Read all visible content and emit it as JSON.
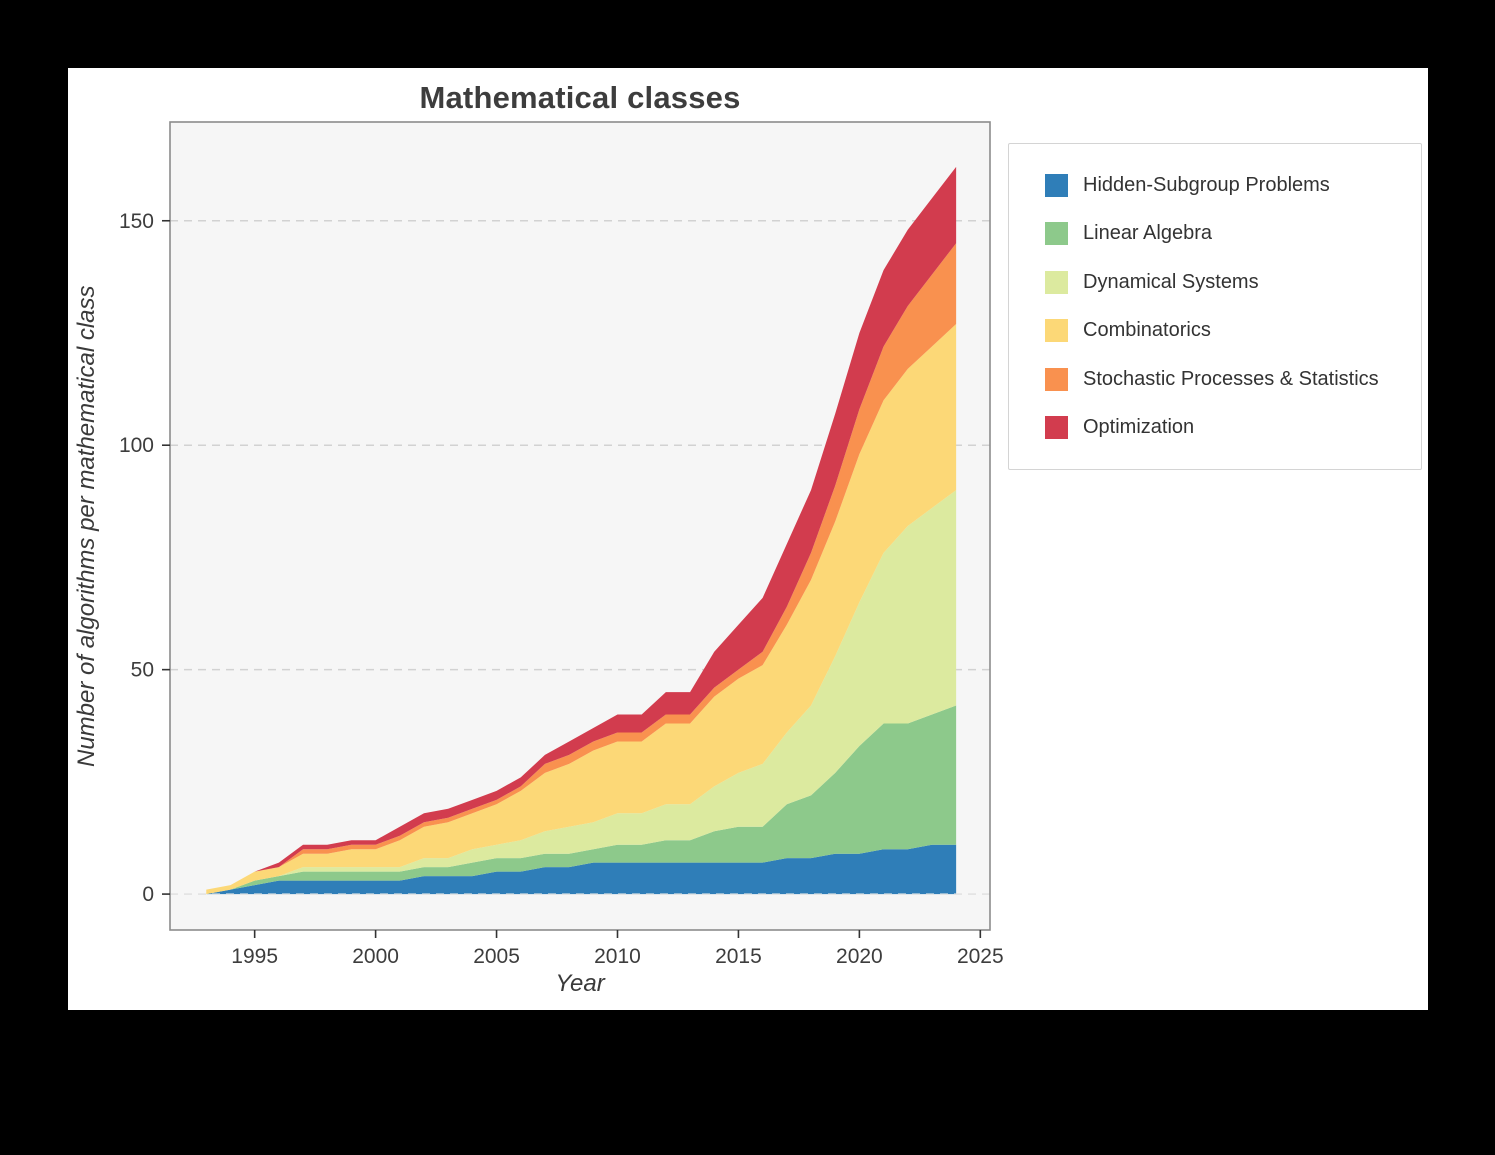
{
  "chart_data": {
    "type": "area",
    "stacked": true,
    "title": "Mathematical classes",
    "xlabel": "Year",
    "ylabel": "Number of algorithms per mathematical class",
    "xlim": [
      1991.5,
      2025.4
    ],
    "ylim": [
      -8,
      172
    ],
    "xticks": [
      1995,
      2000,
      2005,
      2010,
      2015,
      2020,
      2025
    ],
    "yticks": [
      0,
      50,
      100,
      150
    ],
    "grid": "dashed-horizontal",
    "legend_position": "right",
    "plot_bg": "#f6f6f6",
    "grid_color": "#d2d2d2",
    "border_color": "#8c8c8c",
    "tick_text_color": "#3d3d3d",
    "years": [
      1993,
      1994,
      1995,
      1996,
      1997,
      1998,
      1999,
      2000,
      2001,
      2002,
      2003,
      2004,
      2005,
      2006,
      2007,
      2008,
      2009,
      2010,
      2011,
      2012,
      2013,
      2014,
      2015,
      2016,
      2017,
      2018,
      2019,
      2020,
      2021,
      2022,
      2023,
      2024
    ],
    "series": [
      {
        "name": "Hidden-Subgroup Problems",
        "color": "#2f7eb8",
        "values": [
          0,
          1,
          2,
          3,
          3,
          3,
          3,
          3,
          3,
          4,
          4,
          4,
          5,
          5,
          6,
          6,
          7,
          7,
          7,
          7,
          7,
          7,
          7,
          7,
          8,
          8,
          9,
          9,
          10,
          10,
          11,
          11
        ]
      },
      {
        "name": "Linear Algebra",
        "color": "#8dc98b",
        "values": [
          0,
          0,
          1,
          1,
          2,
          2,
          2,
          2,
          2,
          2,
          2,
          3,
          3,
          3,
          3,
          3,
          3,
          4,
          4,
          5,
          5,
          7,
          8,
          8,
          12,
          14,
          18,
          24,
          28,
          28,
          29,
          31
        ]
      },
      {
        "name": "Dynamical Systems",
        "color": "#dcea9f",
        "values": [
          0,
          0,
          0,
          0,
          1,
          1,
          1,
          1,
          1,
          2,
          2,
          3,
          3,
          4,
          5,
          6,
          6,
          7,
          7,
          8,
          8,
          10,
          12,
          14,
          16,
          20,
          26,
          32,
          38,
          44,
          46,
          48
        ]
      },
      {
        "name": "Combinatorics",
        "color": "#fcd877",
        "values": [
          1,
          1,
          2,
          2,
          3,
          3,
          4,
          4,
          6,
          7,
          8,
          8,
          9,
          11,
          13,
          14,
          16,
          16,
          16,
          18,
          18,
          20,
          21,
          22,
          24,
          28,
          30,
          33,
          34,
          35,
          36,
          37
        ]
      },
      {
        "name": "Stochastic Processes & Statistics",
        "color": "#f9914f",
        "values": [
          0,
          0,
          0,
          0,
          1,
          1,
          1,
          1,
          1,
          1,
          1,
          1,
          1,
          1,
          2,
          2,
          2,
          2,
          2,
          2,
          2,
          2,
          2,
          3,
          4,
          6,
          8,
          10,
          12,
          14,
          16,
          18
        ]
      },
      {
        "name": "Optimization",
        "color": "#d23c4e",
        "values": [
          0,
          0,
          0,
          1,
          1,
          1,
          1,
          1,
          2,
          2,
          2,
          2,
          2,
          2,
          2,
          3,
          3,
          4,
          4,
          5,
          5,
          8,
          10,
          12,
          14,
          14,
          16,
          17,
          17,
          17,
          17,
          17
        ]
      }
    ]
  }
}
